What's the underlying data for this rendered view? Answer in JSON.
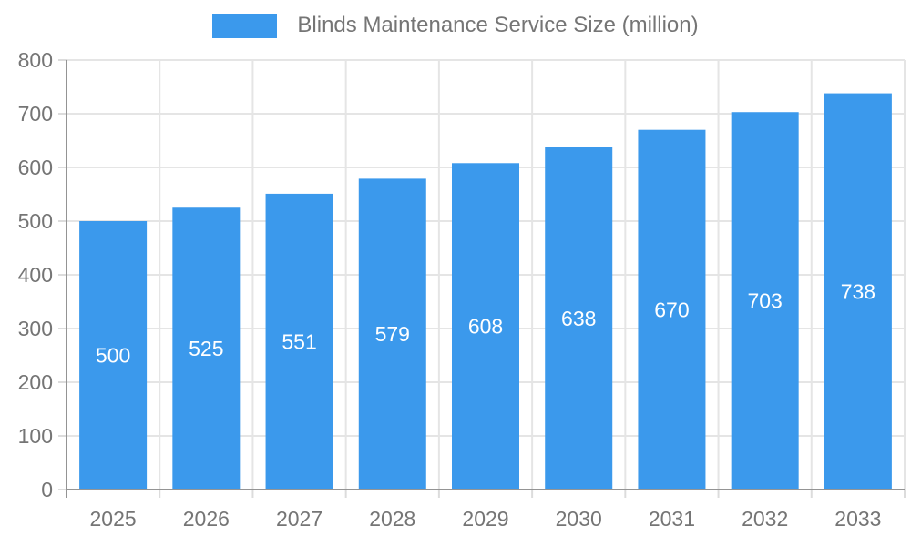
{
  "legend": {
    "label": "Blinds Maintenance Service Size (million)"
  },
  "chart_data": {
    "type": "bar",
    "title": "Blinds Maintenance Service Size (million)",
    "categories": [
      "2025",
      "2026",
      "2027",
      "2028",
      "2029",
      "2030",
      "2031",
      "2032",
      "2033"
    ],
    "values": [
      500,
      525,
      551,
      579,
      608,
      638,
      670,
      703,
      738
    ],
    "value_labels": [
      "500",
      "525",
      "551",
      "579",
      "608",
      "638",
      "670",
      "703",
      "738"
    ],
    "xlabel": "",
    "ylabel": "",
    "ylim": [
      0,
      800
    ],
    "yticks": [
      0,
      100,
      200,
      300,
      400,
      500,
      600,
      700,
      800
    ],
    "grid": true,
    "legend_position": "top",
    "colors": {
      "bar": "#3B99EC",
      "value_label": "#ffffff",
      "grid": "#e5e5e5",
      "tick": "#dcdcdc",
      "axis": "#949494",
      "text": "#757575"
    }
  }
}
